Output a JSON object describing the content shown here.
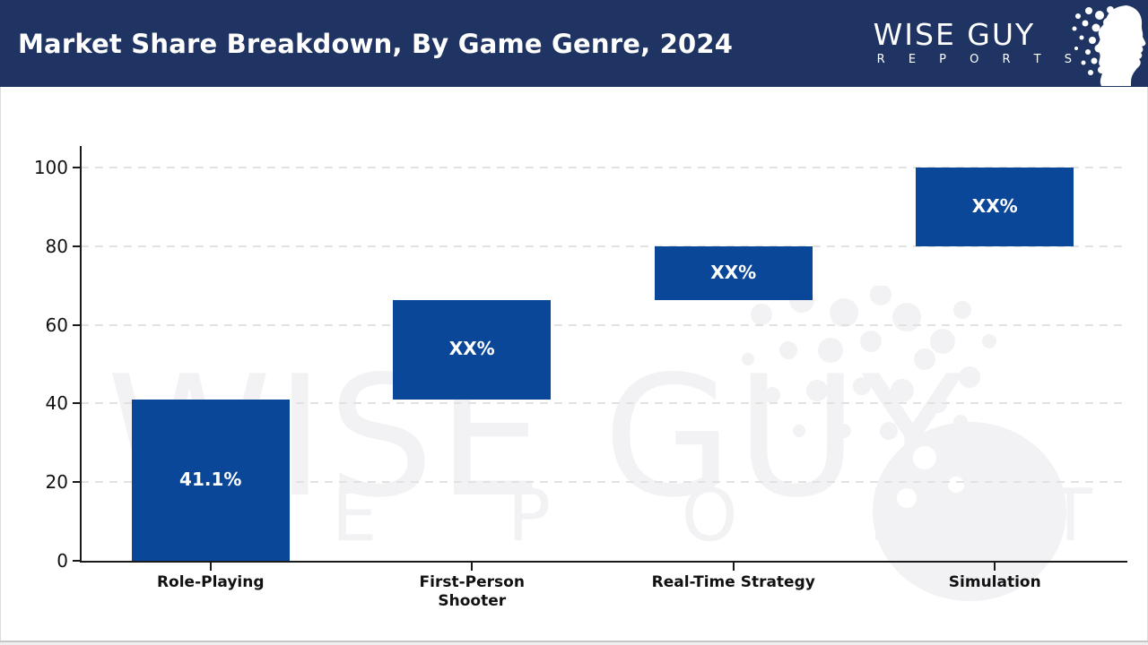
{
  "header": {
    "title": "Market Share Breakdown, By Game Genre, 2024",
    "logo": {
      "name": "WISE GUY",
      "subname": "R E P O R T S",
      "face_icon": "dotted-face-profile"
    }
  },
  "watermark": {
    "line1": "WISE GUY",
    "line2": "R E P O R T S"
  },
  "chart_data": {
    "type": "bar",
    "subtype": "floating-waterfall",
    "title": "Market Share Breakdown, By Game Genre, 2024",
    "categories": [
      "Role-Playing",
      "First-Person\nShooter",
      "Real-Time Strategy",
      "Simulation"
    ],
    "segments": [
      {
        "category": "Role-Playing",
        "start": 0,
        "end": 41.1,
        "label": "41.1%"
      },
      {
        "category": "First-Person Shooter",
        "start": 41.1,
        "end": 66.3,
        "label": "XX%"
      },
      {
        "category": "Real-Time Strategy",
        "start": 66.3,
        "end": 80,
        "label": "XX%"
      },
      {
        "category": "Simulation",
        "start": 80,
        "end": 100,
        "label": "XX%"
      }
    ],
    "ylim": [
      0,
      100
    ],
    "yticks": [
      0,
      20,
      40,
      60,
      80,
      100
    ],
    "grid": "horizontal-dashed",
    "legend": "none",
    "bar_color": "#0b4798",
    "bar_label_color": "#ffffff",
    "axis_color": "#1a1a1a",
    "grid_color": "#e2e2e2"
  },
  "colors": {
    "header_bg": "#1f3462",
    "header_text": "#ffffff",
    "watermark": "#f2f2f4",
    "page_bg": "#ffffff"
  }
}
